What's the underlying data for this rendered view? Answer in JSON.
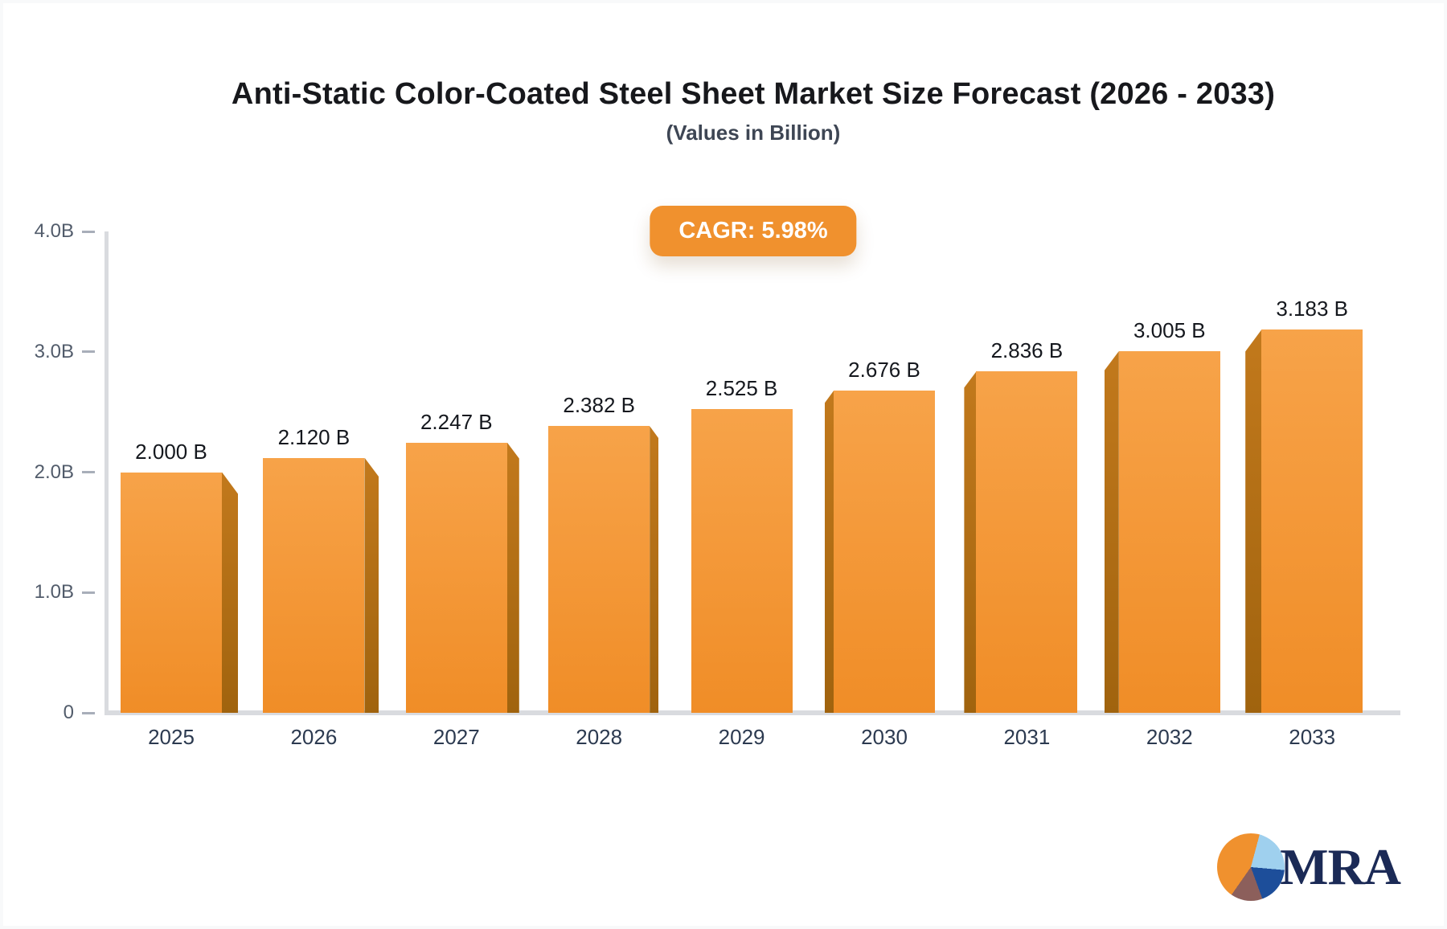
{
  "header": {
    "title": "Anti-Static Color-Coated Steel Sheet Market Size Forecast (2026 - 2033)",
    "subtitle": "(Values in Billion)",
    "cagr_label": "CAGR: 5.98%"
  },
  "chart_data": {
    "type": "bar",
    "title": "Anti-Static Color-Coated Steel Sheet Market Size Forecast (2026 - 2033)",
    "subtitle": "(Values in Billion)",
    "cagr": "5.98%",
    "categories": [
      "2025",
      "2026",
      "2027",
      "2028",
      "2029",
      "2030",
      "2031",
      "2032",
      "2033"
    ],
    "values": [
      2.0,
      2.12,
      2.247,
      2.382,
      2.525,
      2.676,
      2.836,
      3.005,
      3.183
    ],
    "value_labels": [
      "2.000 B",
      "2.120 B",
      "2.247 B",
      "2.382 B",
      "2.525 B",
      "2.676 B",
      "2.836 B",
      "3.005 B",
      "3.183 B"
    ],
    "xlabel": "",
    "ylabel": "",
    "ylim": [
      0,
      4.0
    ],
    "y_ticks": [
      {
        "value": 0,
        "label": "0"
      },
      {
        "value": 1.0,
        "label": "1.0B"
      },
      {
        "value": 2.0,
        "label": "2.0B"
      },
      {
        "value": 3.0,
        "label": "3.0B"
      },
      {
        "value": 4.0,
        "label": "4.0B"
      }
    ],
    "grid": false,
    "legend": false,
    "bar_style": "3d-perspective, side faces toward chart center"
  },
  "logo": {
    "text": "MRA",
    "mark": "pie-chart-icon"
  },
  "colors": {
    "barTop": "#f7a349",
    "barBottom": "#f08d27",
    "sideTop": "#c2791c",
    "sideBottom": "#a0630e",
    "badge": "#f0912e",
    "axis": "#d9dbdf",
    "tickDash": "#a8aeb9",
    "yLabel": "#525c6b",
    "xLabel": "#2c3a50",
    "valueLabel": "#15181e",
    "title": "#17181c",
    "subtitle": "#3e4654",
    "pieOrange": "#f0912e",
    "pieBlue": "#9fd0ee",
    "pieNavy": "#1d4e9a",
    "pieBrown": "#8c5f5b",
    "logoText": "#1b2a56"
  }
}
